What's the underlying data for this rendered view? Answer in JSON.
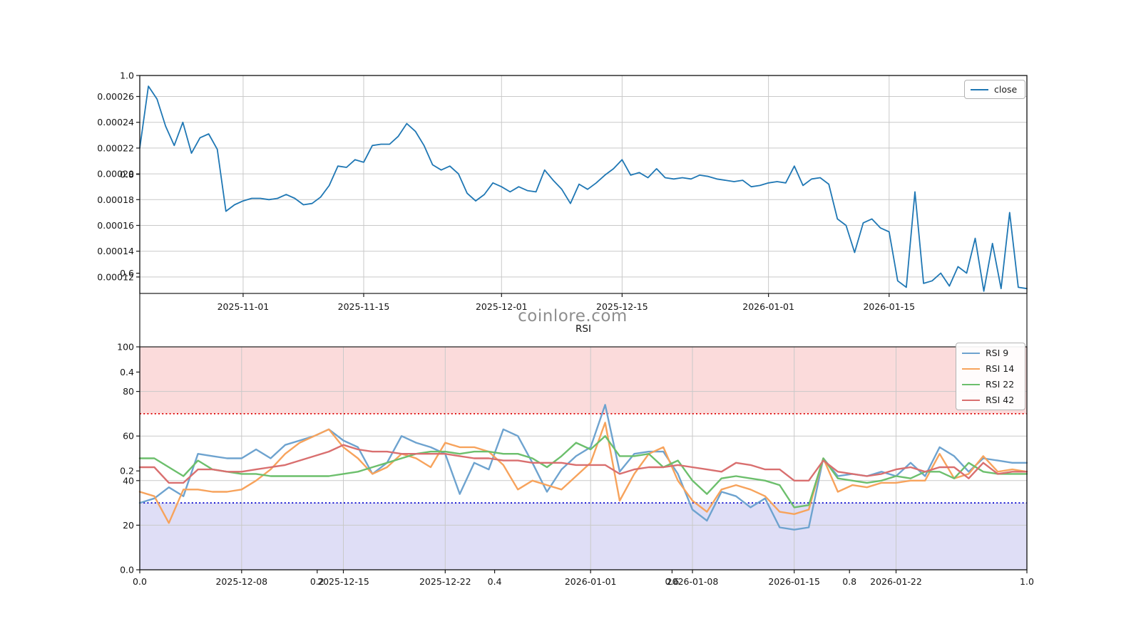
{
  "watermark": "coinlore.com",
  "overlay_axis": {
    "x_ticks": [
      "0.0",
      "0.2",
      "0.4",
      "0.6",
      "0.8",
      "1.0"
    ],
    "y_ticks": [
      "1.0",
      "0.8",
      "0.6",
      "0.4",
      "0.2",
      "0.0"
    ]
  },
  "chart_data": [
    {
      "type": "line",
      "role": "price-panel",
      "title": "",
      "legend_position": "upper right",
      "grid": true,
      "x_start": "2025-10-20",
      "x_end": "2026-01-31",
      "x_ticks": [
        {
          "label": "2025-11-01",
          "f": 0.1165
        },
        {
          "label": "2025-11-15",
          "f": 0.2524
        },
        {
          "label": "2025-12-01",
          "f": 0.4078
        },
        {
          "label": "2025-12-15",
          "f": 0.5437
        },
        {
          "label": "2026-01-01",
          "f": 0.7087
        },
        {
          "label": "2026-01-15",
          "f": 0.8447
        }
      ],
      "y_ticks": [
        0.00026,
        0.00024,
        0.00022,
        0.0002,
        0.00018,
        0.00016,
        0.00014,
        0.00012
      ],
      "ylim": [
        0.000107,
        0.000276
      ],
      "series": [
        {
          "name": "close",
          "color": "#1f77b4",
          "values": [
            0.00022,
            0.000268,
            0.000258,
            0.000237,
            0.000222,
            0.00024,
            0.000216,
            0.000228,
            0.000231,
            0.000219,
            0.000171,
            0.000176,
            0.000179,
            0.000181,
            0.000181,
            0.00018,
            0.000181,
            0.000184,
            0.000181,
            0.000176,
            0.000177,
            0.000182,
            0.000191,
            0.000206,
            0.000205,
            0.000211,
            0.000209,
            0.000222,
            0.000223,
            0.000223,
            0.000229,
            0.000239,
            0.000233,
            0.000222,
            0.000207,
            0.000203,
            0.000206,
            0.0002,
            0.000185,
            0.000179,
            0.000184,
            0.000193,
            0.00019,
            0.000186,
            0.00019,
            0.000187,
            0.000186,
            0.000203,
            0.000195,
            0.000188,
            0.000177,
            0.000192,
            0.000188,
            0.000193,
            0.000199,
            0.000204,
            0.000211,
            0.000199,
            0.000201,
            0.000197,
            0.000204,
            0.000197,
            0.000196,
            0.000197,
            0.000196,
            0.000199,
            0.000198,
            0.000196,
            0.000195,
            0.000194,
            0.000195,
            0.00019,
            0.000191,
            0.000193,
            0.000194,
            0.000193,
            0.000206,
            0.000191,
            0.000196,
            0.000197,
            0.000192,
            0.000165,
            0.00016,
            0.000139,
            0.000162,
            0.000165,
            0.000158,
            0.000155,
            0.000117,
            0.000112,
            0.000186,
            0.000115,
            0.000117,
            0.000123,
            0.000113,
            0.000128,
            0.000123,
            0.00015,
            0.000109,
            0.000146,
            0.000111,
            0.00017,
            0.000112,
            0.000111
          ]
        }
      ]
    },
    {
      "type": "line",
      "role": "rsi-panel",
      "title": "RSI",
      "legend_position": "upper right",
      "grid": true,
      "x_start": "2025-12-01",
      "x_end": "2026-01-31",
      "x_ticks": [
        {
          "label": "2025-12-08",
          "f": 0.1148
        },
        {
          "label": "2025-12-15",
          "f": 0.2295
        },
        {
          "label": "2025-12-22",
          "f": 0.3443
        },
        {
          "label": "2026-01-01",
          "f": 0.5082
        },
        {
          "label": "2026-01-08",
          "f": 0.623
        },
        {
          "label": "2026-01-15",
          "f": 0.7377
        },
        {
          "label": "2026-01-22",
          "f": 0.8525
        }
      ],
      "y_ticks": [
        100,
        80,
        60,
        40,
        20
      ],
      "ylim": [
        0,
        100
      ],
      "bands": [
        {
          "from": 70,
          "to": 100,
          "color": "#fbdbdb"
        },
        {
          "from": 0,
          "to": 30,
          "color": "#dfdef6"
        }
      ],
      "threshold_lines": [
        {
          "y": 70,
          "color": "#dd0000"
        },
        {
          "y": 30,
          "color": "#0000cc"
        }
      ],
      "series": [
        {
          "name": "RSI 9",
          "color": "#6ea3cf",
          "values": [
            30,
            32,
            37,
            33,
            52,
            51,
            50,
            50,
            54,
            50,
            56,
            58,
            60,
            63,
            58,
            55,
            43,
            48,
            60,
            57,
            55,
            52,
            34,
            48,
            45,
            63,
            60,
            48,
            35,
            45,
            51,
            55,
            74,
            44,
            52,
            53,
            53,
            43,
            27,
            22,
            35,
            33,
            28,
            32,
            19,
            18,
            19,
            50,
            42,
            43,
            42,
            44,
            42,
            48,
            42,
            55,
            51,
            44,
            50,
            49,
            48,
            48
          ]
        },
        {
          "name": "RSI 14",
          "color": "#f7a35c",
          "values": [
            35,
            33,
            21,
            36,
            36,
            35,
            35,
            36,
            40,
            45,
            52,
            57,
            60,
            63,
            55,
            50,
            43,
            46,
            52,
            50,
            46,
            57,
            55,
            55,
            53,
            47,
            36,
            40,
            38,
            36,
            42,
            48,
            66,
            31,
            43,
            52,
            55,
            40,
            31,
            26,
            36,
            38,
            36,
            33,
            26,
            25,
            27,
            50,
            35,
            38,
            37,
            39,
            39,
            40,
            40,
            52,
            41,
            43,
            51,
            44,
            45,
            44
          ]
        },
        {
          "name": "RSI 22",
          "color": "#6cbf6c",
          "values": [
            50,
            50,
            46,
            42,
            49,
            45,
            44,
            43,
            43,
            42,
            42,
            42,
            42,
            42,
            43,
            44,
            46,
            48,
            50,
            52,
            53,
            53,
            52,
            53,
            53,
            52,
            52,
            50,
            46,
            51,
            57,
            54,
            60,
            51,
            51,
            52,
            46,
            49,
            40,
            34,
            41,
            42,
            41,
            40,
            38,
            28,
            29,
            50,
            41,
            40,
            39,
            40,
            42,
            41,
            44,
            44,
            41,
            48,
            44,
            43,
            43,
            43
          ]
        },
        {
          "name": "RSI 42",
          "color": "#d96f6f",
          "values": [
            46,
            46,
            39,
            39,
            45,
            45,
            44,
            44,
            45,
            46,
            47,
            49,
            51,
            53,
            56,
            54,
            53,
            53,
            52,
            52,
            52,
            52,
            51,
            50,
            50,
            49,
            49,
            48,
            48,
            48,
            47,
            47,
            47,
            43,
            45,
            46,
            46,
            47,
            46,
            45,
            44,
            48,
            47,
            45,
            45,
            40,
            40,
            49,
            44,
            43,
            42,
            43,
            45,
            46,
            44,
            46,
            46,
            41,
            48,
            43,
            44,
            44
          ]
        }
      ]
    }
  ]
}
